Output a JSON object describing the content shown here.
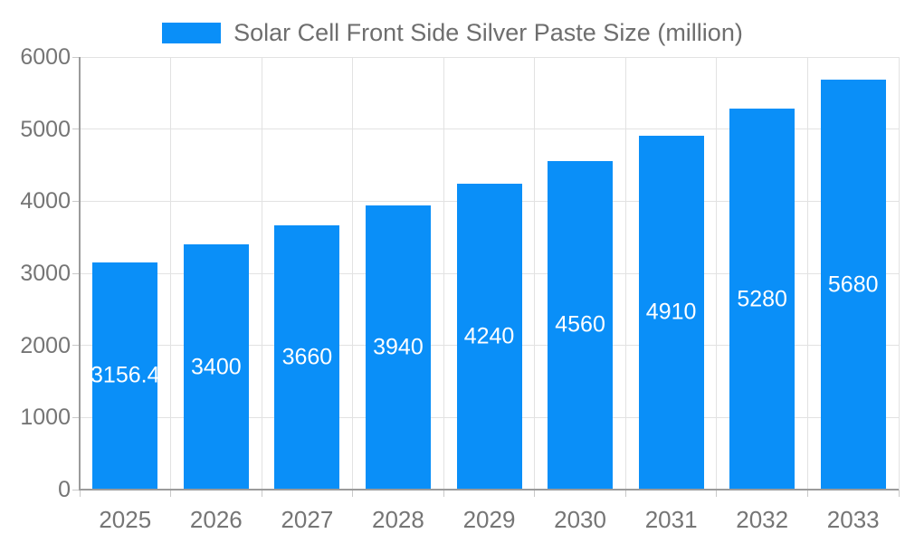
{
  "legend": {
    "label": "Solar Cell Front Side Silver Paste Size (million)"
  },
  "chart_data": {
    "type": "bar",
    "title": "Solar Cell Front Side Silver Paste Size (million)",
    "categories": [
      "2025",
      "2026",
      "2027",
      "2028",
      "2029",
      "2030",
      "2031",
      "2032",
      "2033"
    ],
    "values": [
      3156.4,
      3400,
      3660,
      3940,
      4240,
      4560,
      4910,
      5280,
      5680
    ],
    "value_labels": [
      "3156.4",
      "3400",
      "3660",
      "3940",
      "4240",
      "4560",
      "4910",
      "5280",
      "5680"
    ],
    "xlabel": "",
    "ylabel": "",
    "ylim": [
      0,
      6000
    ],
    "yticks": [
      0,
      1000,
      2000,
      3000,
      4000,
      5000,
      6000
    ],
    "grid": true,
    "legend_position": "top-center"
  },
  "colors": {
    "bar": "#0A8FF8",
    "axis": "#9b9b9b",
    "grid": "#e2e2e2",
    "tick": "#c9c9c9",
    "text": "#757575",
    "value_label": "#ffffff",
    "background": "#ffffff"
  }
}
